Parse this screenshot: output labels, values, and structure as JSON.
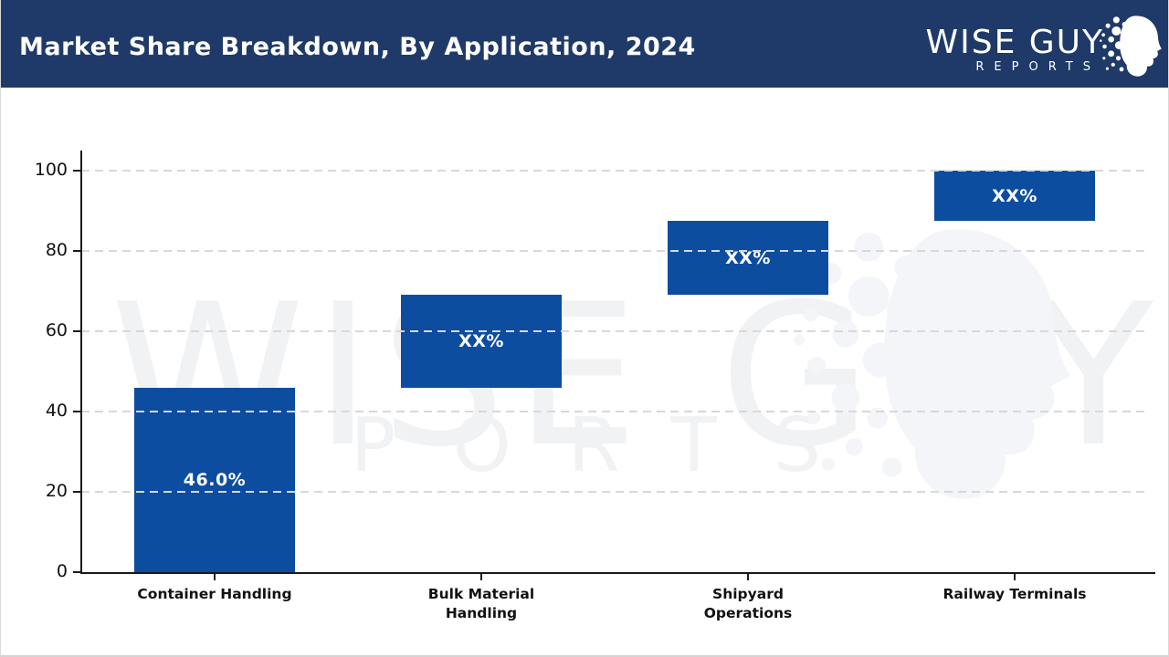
{
  "header": {
    "title": "Market Share Breakdown, By Application, 2024",
    "brand": {
      "line1": "WISE GUY",
      "line2": "REPORTS"
    }
  },
  "watermark": {
    "line1": "WISE GUY",
    "line2": "REPORTS"
  },
  "colors": {
    "header_bg": "#1f3a68",
    "bar": "#0c4da0",
    "grid": "#d8d8d8",
    "axis": "#1a1a1a",
    "bar_label": "#ffffff",
    "watermark": "#f1f2f4",
    "watermark_head": "#f4f5f8"
  },
  "chart_data": {
    "type": "bar",
    "subtype": "waterfall",
    "title": "Market Share Breakdown, By Application, 2024",
    "categories": [
      "Container Handling",
      "Bulk Material\nHandling",
      "Shipyard\nOperations",
      "Railway Terminals"
    ],
    "segments": [
      {
        "category": "Container Handling",
        "start": 0,
        "end": 46,
        "label": "46.0%"
      },
      {
        "category": "Bulk Material Handling",
        "start": 46,
        "end": 69,
        "label": "XX%"
      },
      {
        "category": "Shipyard Operations",
        "start": 69,
        "end": 87.5,
        "label": "XX%"
      },
      {
        "category": "Railway Terminals",
        "start": 87.5,
        "end": 100,
        "label": "XX%"
      }
    ],
    "ylim": [
      0,
      100
    ],
    "yticks": [
      0,
      20,
      40,
      60,
      80,
      100
    ],
    "xlabel": "",
    "ylabel": "",
    "grid": "dashed-horizontal",
    "legend": "none"
  }
}
